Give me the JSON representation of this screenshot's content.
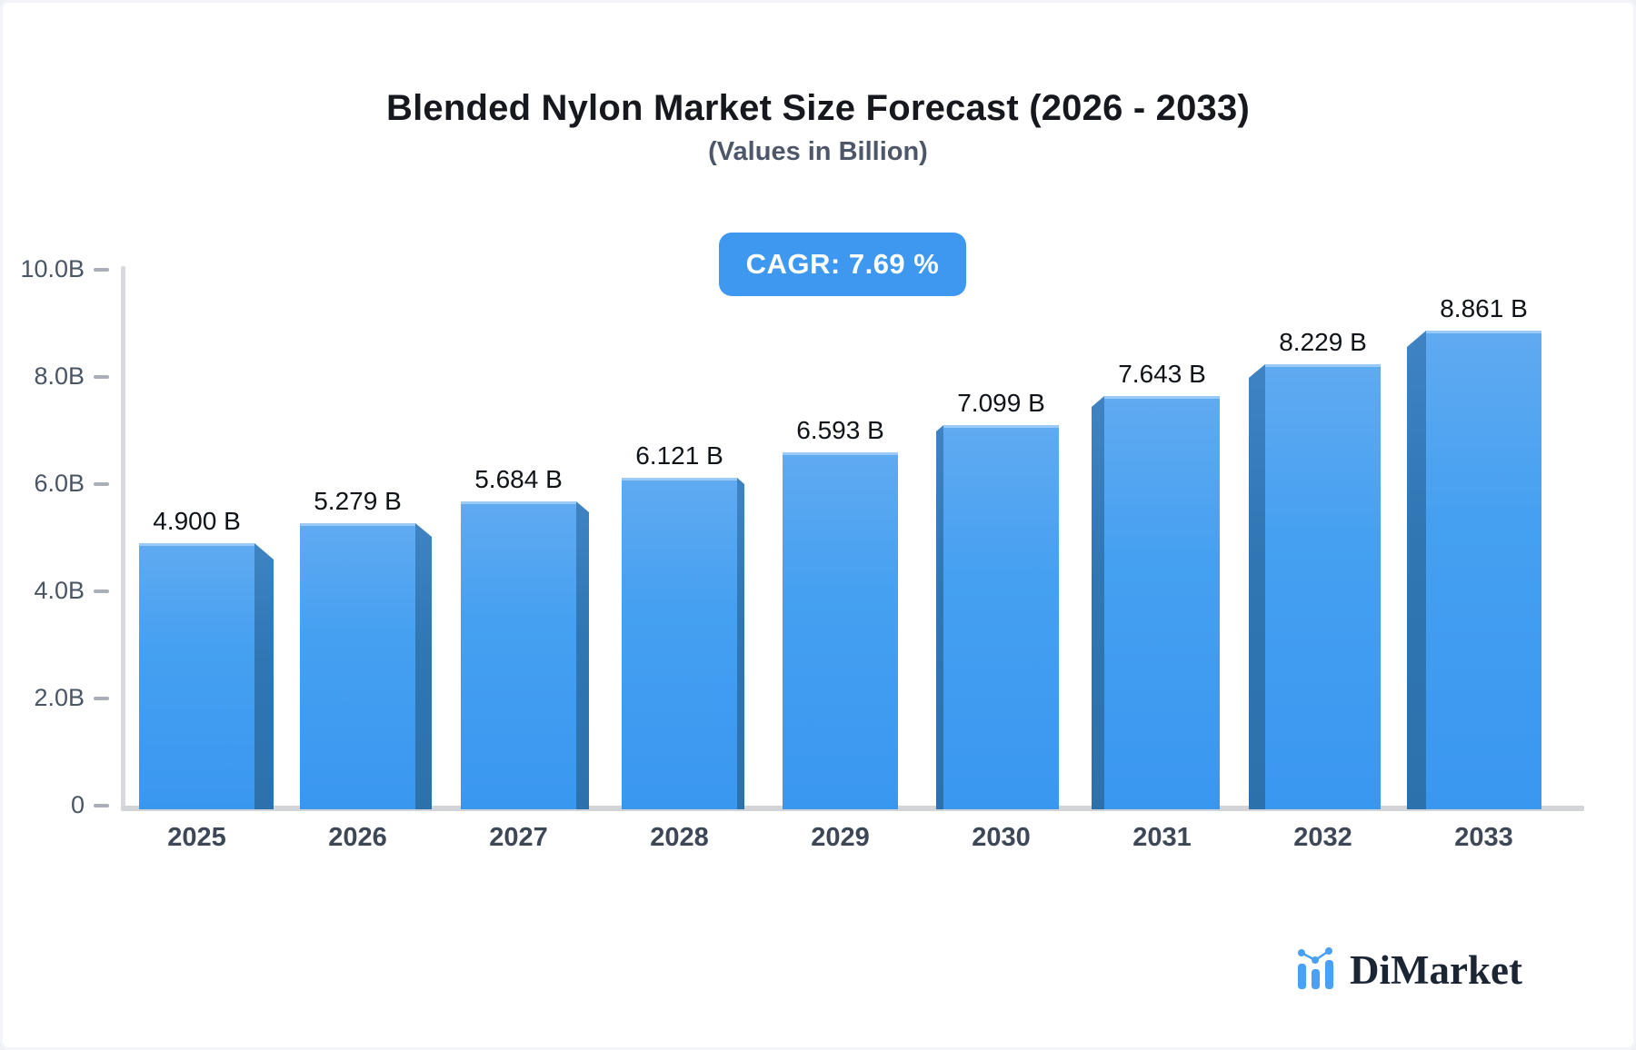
{
  "page": {
    "title": "Blended Nylon Market Size Forecast (2026 - 2033)",
    "subtitle": "(Values in Billion)",
    "cagr_badge": "CAGR: 7.69 %"
  },
  "chart_data": {
    "type": "bar",
    "title": "Blended Nylon Market Size Forecast (2026 - 2033)",
    "subtitle": "(Values in Billion)",
    "cagr": "7.69 %",
    "categories": [
      "2025",
      "2026",
      "2027",
      "2028",
      "2029",
      "2030",
      "2031",
      "2032",
      "2033"
    ],
    "values": [
      4.9,
      5.279,
      5.684,
      6.121,
      6.593,
      7.099,
      7.643,
      8.229,
      8.861
    ],
    "labels": [
      "4.900 B",
      "5.279 B",
      "5.684 B",
      "6.121 B",
      "6.593 B",
      "7.099 B",
      "7.643 B",
      "8.229 B",
      "8.861 B"
    ],
    "xlabel": "",
    "ylabel": "",
    "ylim": [
      0,
      10
    ],
    "yticks": [
      {
        "label": "10.0B",
        "value": 10
      },
      {
        "label": "8.0B",
        "value": 8
      },
      {
        "label": "6.0B",
        "value": 6
      },
      {
        "label": "4.0B",
        "value": 4
      },
      {
        "label": "2.0B",
        "value": 2
      },
      {
        "label": "0",
        "value": 0
      }
    ],
    "grid": false,
    "legend": "none",
    "bar_color": "#3f9bf0",
    "bar_side_color": "#2e76b4",
    "style": "3d-perspective-center"
  },
  "footer": {
    "brand": "DiMarket"
  },
  "colors": {
    "accent_blue": "#3e98f0",
    "axis_gray": "#d2d4d8",
    "text_dark": "#17181d"
  }
}
